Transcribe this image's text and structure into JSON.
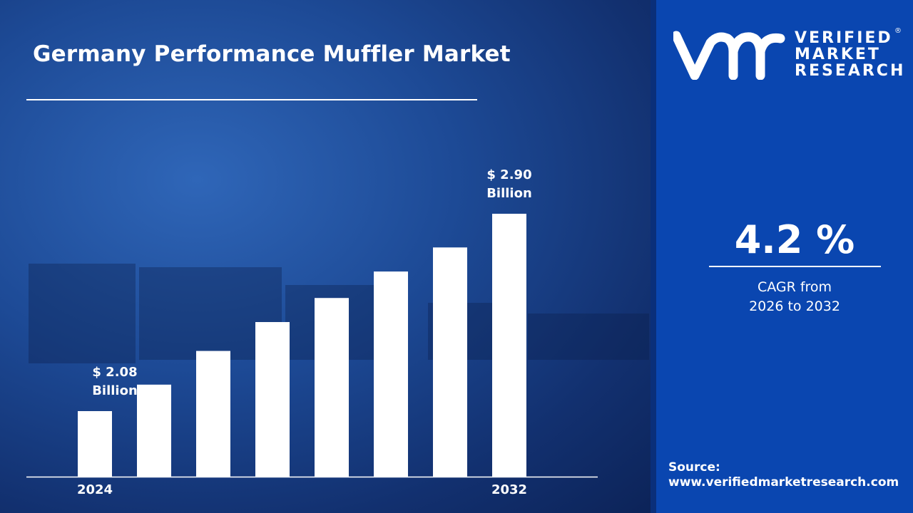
{
  "title": "Germany Performance Muffler Market",
  "logo": {
    "line1": "VERIFIED",
    "line2": "MARKET",
    "line3": "RESEARCH",
    "reg": "®",
    "mark": "vmr"
  },
  "cagr": {
    "value": "4.2 %",
    "line1": "CAGR from",
    "line2": "2026 to 2032"
  },
  "source": {
    "label": "Source:",
    "url": "www.verifiedmarketresearch.com"
  },
  "colors": {
    "panel": "#0a46b0",
    "bars": "#ffffff"
  },
  "chart_data": {
    "type": "bar",
    "title": "Germany Performance Muffler Market",
    "categories": [
      "2024",
      "",
      "",
      "",
      "",
      "",
      "",
      "2032"
    ],
    "values": [
      2.08,
      2.19,
      2.33,
      2.45,
      2.55,
      2.66,
      2.76,
      2.9
    ],
    "data_labels": [
      {
        "index": 0,
        "line1": "$ 2.08",
        "line2": "Billion"
      },
      {
        "index": 7,
        "line1": "$ 2.90",
        "line2": "Billion"
      }
    ],
    "xlabel": "",
    "ylabel": "",
    "grid": false
  }
}
